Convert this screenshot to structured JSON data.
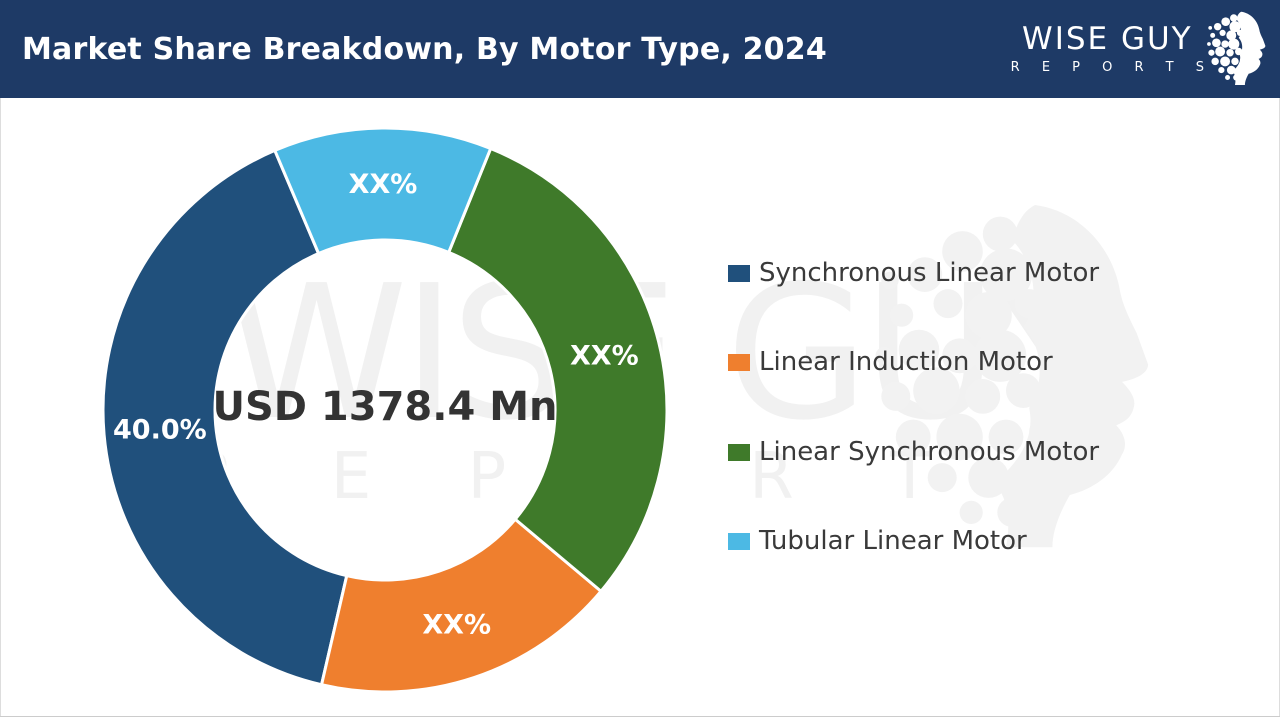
{
  "header": {
    "title": "Market Share Breakdown, By Motor Type, 2024",
    "logo": {
      "line1": "WISE GUY",
      "line2": "R E P O R T S"
    }
  },
  "watermark": {
    "line1": "WISE GUY",
    "line2": "R E P O R T S"
  },
  "chart_data": {
    "type": "donut",
    "title": "Market Share Breakdown, By Motor Type, 2024",
    "center_label": "USD 1378.4 Mn",
    "start_angle_deg": 113,
    "direction": "counterclockwise",
    "outer_radius_px": 282,
    "inner_radius_px": 170,
    "segments": [
      {
        "label": "Synchronous Linear Motor",
        "value_label": "40.0%",
        "value": 40.0,
        "color": "#20507c"
      },
      {
        "label": "Linear Induction Motor",
        "value_label": "XX%",
        "value": 17.5,
        "color": "#ef7f2e"
      },
      {
        "label": "Linear Synchronous Motor",
        "value_label": "XX%",
        "value": 30.0,
        "color": "#3f7a2a"
      },
      {
        "label": "Tubular Linear Motor",
        "value_label": "XX%",
        "value": 12.5,
        "color": "#4cb9e4"
      }
    ]
  },
  "legend": {
    "items": [
      {
        "label": "Synchronous Linear Motor",
        "color": "#20507c"
      },
      {
        "label": "Linear Induction Motor",
        "color": "#ef7f2e"
      },
      {
        "label": "Linear Synchronous Motor",
        "color": "#3f7a2a"
      },
      {
        "label": "Tubular Linear Motor",
        "color": "#4cb9e4"
      }
    ]
  },
  "colors": {
    "header_bg": "#1e3a66",
    "watermark": "#f1f1f1",
    "center_text": "#333333",
    "legend_text": "#3a3a3a"
  }
}
